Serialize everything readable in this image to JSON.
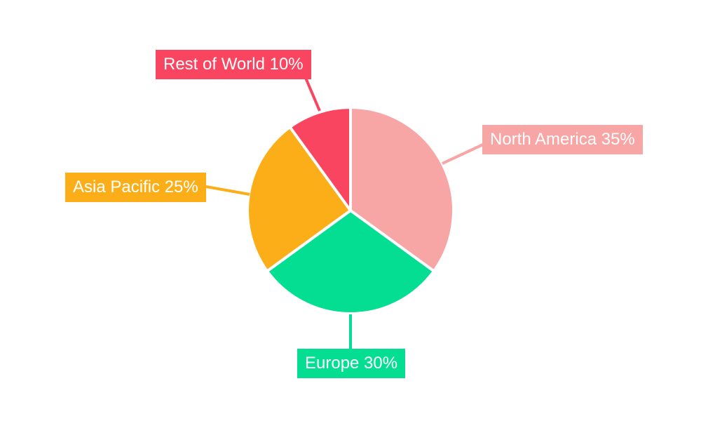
{
  "chart_data": {
    "type": "pie",
    "title": "",
    "legend_position": "none",
    "label_style": "callout boxes with leader lines, format {label} {value}%",
    "background": "#FFFFFF",
    "start_angle_deg": -90,
    "direction": "clockwise",
    "units": "%",
    "slices": [
      {
        "label": "North America",
        "value": 35,
        "display": "North America 35%",
        "color": "#F8A5A5"
      },
      {
        "label": "Europe",
        "value": 30,
        "display": "Europe 30%",
        "color": "#04DE92"
      },
      {
        "label": "Asia Pacific",
        "value": 25,
        "display": "Asia Pacific 25%",
        "color": "#FBAE17"
      },
      {
        "label": "Rest of World",
        "value": 10,
        "display": "Rest of World 10%",
        "color": "#FA4561"
      }
    ]
  }
}
